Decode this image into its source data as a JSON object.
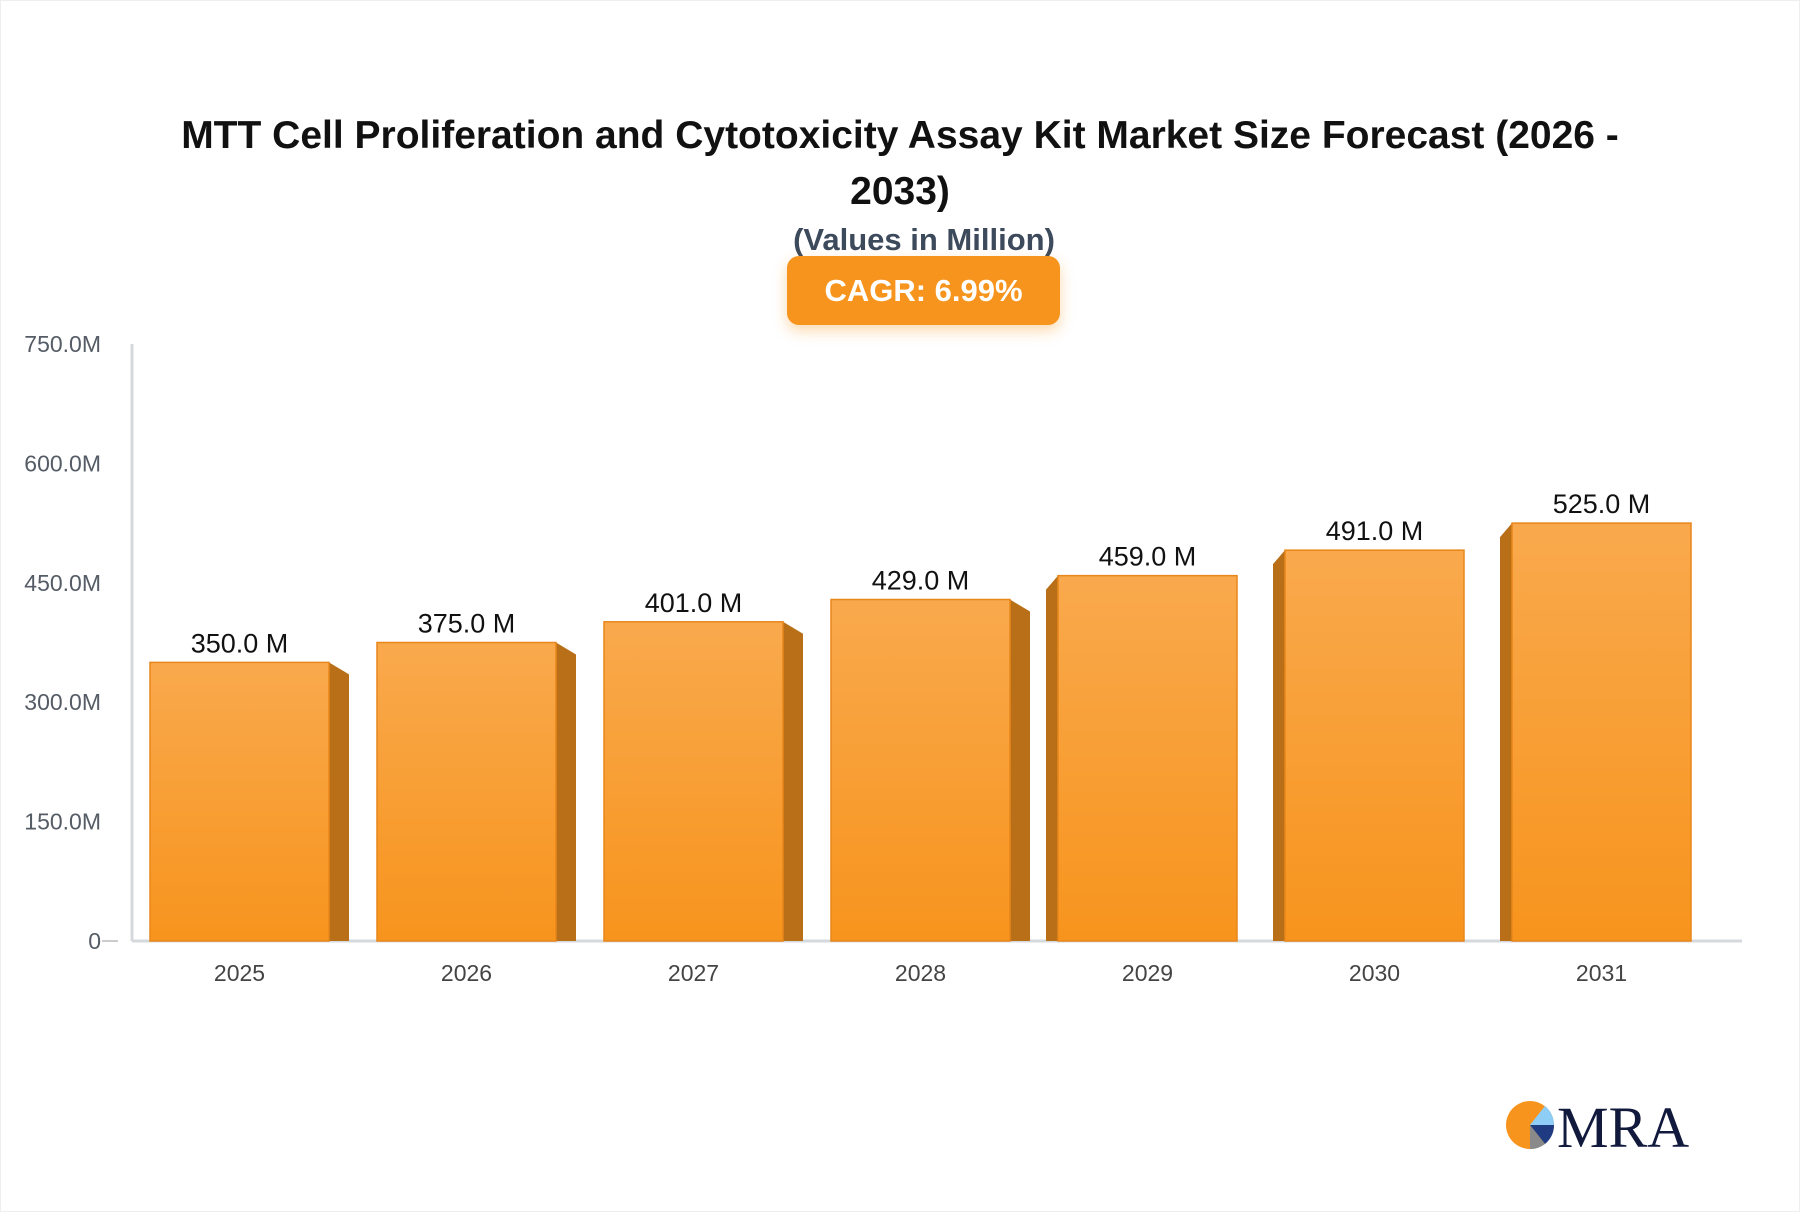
{
  "chart_data": {
    "type": "bar",
    "title": "MTT Cell Proliferation and Cytotoxicity Assay Kit Market Size Forecast (2026 - 2033)",
    "subtitle": "(Values in Million)",
    "badge": "CAGR: 6.99%",
    "categories": [
      "2025",
      "2026",
      "2027",
      "2028",
      "2029",
      "2030",
      "2031"
    ],
    "values": [
      350.0,
      375.0,
      401.0,
      429.0,
      459.0,
      491.0,
      525.0
    ],
    "data_labels": [
      "350.0 M",
      "375.0 M",
      "401.0 M",
      "429.0 M",
      "459.0 M",
      "491.0 M",
      "525.0 M"
    ],
    "yticks": [
      0,
      150,
      300,
      450,
      600,
      750
    ],
    "ytick_labels": [
      "0",
      "150.0M",
      "300.0M",
      "450.0M",
      "600.0M",
      "750.0M"
    ],
    "ylim": [
      0,
      750
    ],
    "xlabel": "",
    "ylabel": "",
    "grid": false,
    "legend": "none",
    "colors": {
      "bar": "#f7941d",
      "bar_top": "#f9a94d",
      "bar_side": "#b86f17",
      "badge": "#f7941d",
      "axis": "#d5d9de"
    }
  },
  "logo": {
    "text": "MRA"
  }
}
